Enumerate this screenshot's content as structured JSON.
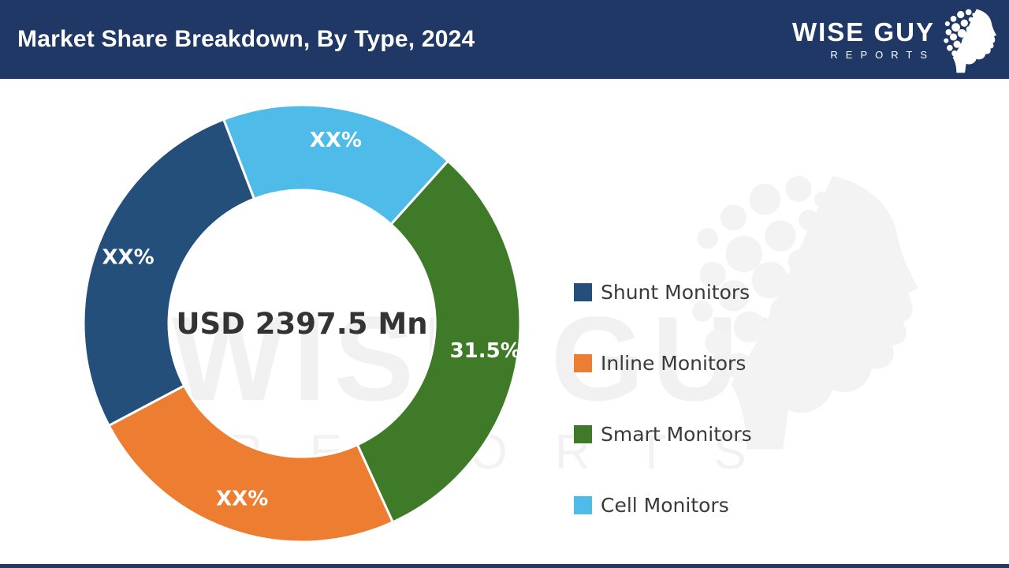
{
  "header": {
    "title": "Market Share Breakdown, By Type, 2024",
    "logo_line1": "WISE GUY",
    "logo_line2": "REPORTS"
  },
  "watermark": {
    "line1": "WISE GUY",
    "line2": "REPORTS"
  },
  "chart_data": {
    "type": "pie",
    "subtype": "donut",
    "title": "Market Share Breakdown, By Type, 2024",
    "center_label": "USD 2397.5 Mn",
    "start_angle_deg_clockwise_from_top": -21,
    "direction": "clockwise",
    "inner_radius_ratio": 0.61,
    "legend_position": "right",
    "segments": [
      {
        "name": "Shunt Monitors",
        "value_pct": 26.9,
        "display_label": "XX%",
        "color": "#234f7a"
      },
      {
        "name": "Inline Monitors",
        "value_pct": 24.1,
        "display_label": "XX%",
        "color": "#ed7d31"
      },
      {
        "name": "Smart Monitors",
        "value_pct": 31.5,
        "display_label": "31.5%",
        "color": "#3f7a28"
      },
      {
        "name": "Cell Monitors",
        "value_pct": 17.5,
        "display_label": "XX%",
        "color": "#4fbbe8"
      }
    ],
    "draw_order_clockwise_from_top": [
      "Cell Monitors",
      "Smart Monitors",
      "Inline Monitors",
      "Shunt Monitors"
    ]
  },
  "colors": {
    "header_bg": "#203865",
    "footer_bg": "#203865",
    "slice_label_text": "#ffffff",
    "slice_separator": "#ffffff",
    "legend_text": "#3a3a3a",
    "center_text": "#333333",
    "watermark_text": "#f1f1f1",
    "watermark_head": "#f3f3f3"
  }
}
